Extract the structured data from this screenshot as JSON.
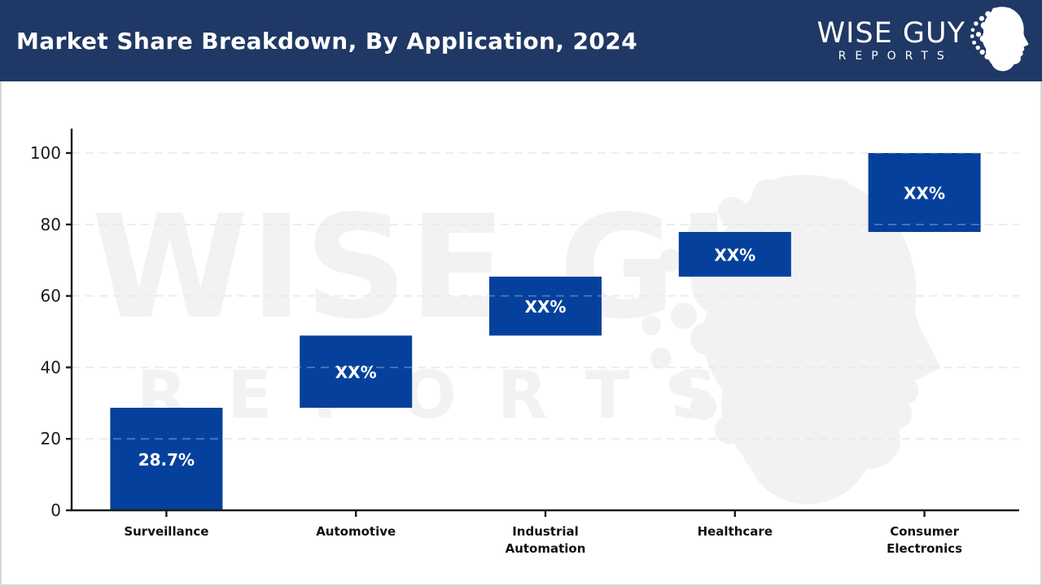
{
  "header": {
    "title": "Market Share Breakdown, By Application, 2024",
    "logo": {
      "line1": "WISE GUY",
      "line2": "REPORTS"
    }
  },
  "watermark": {
    "line1": "WISE GUY",
    "line2": "REPORTS"
  },
  "colors": {
    "header_bg": "#203865",
    "bar_blue": "#05419c",
    "grid_gray": "#dfdfdf",
    "watermark_gray": "#f2f2f5",
    "axis_black": "#1a1a1a",
    "bar_label_white": "#ffffff"
  },
  "chart_data": {
    "type": "bar",
    "subtype": "waterfall",
    "title": "Market Share Breakdown, By Application, 2024",
    "xlabel": "",
    "ylabel": "",
    "categories": [
      "Surveillance",
      "Automotive",
      "Industrial Automation",
      "Healthcare",
      "Consumer Electronics"
    ],
    "category_lines": [
      [
        "Surveillance"
      ],
      [
        "Automotive"
      ],
      [
        "Industrial",
        "Automation"
      ],
      [
        "Healthcare"
      ],
      [
        "Consumer",
        "Electronics"
      ]
    ],
    "values": [
      28.7,
      20.2,
      16.5,
      12.5,
      22.1
    ],
    "segments": [
      {
        "start": 0,
        "end": 28.7,
        "label": "28.7%"
      },
      {
        "start": 28.7,
        "end": 48.9,
        "label": "XX%"
      },
      {
        "start": 48.9,
        "end": 65.4,
        "label": "XX%"
      },
      {
        "start": 65.4,
        "end": 77.9,
        "label": "XX%"
      },
      {
        "start": 77.9,
        "end": 100,
        "label": "XX%"
      }
    ],
    "yticks": [
      0,
      20,
      40,
      60,
      80,
      100
    ],
    "ylim": [
      0,
      100
    ],
    "grid": true,
    "grid_style": "dashed",
    "legend": "none",
    "bar_color": "#05419c",
    "label_color": "#ffffff"
  }
}
